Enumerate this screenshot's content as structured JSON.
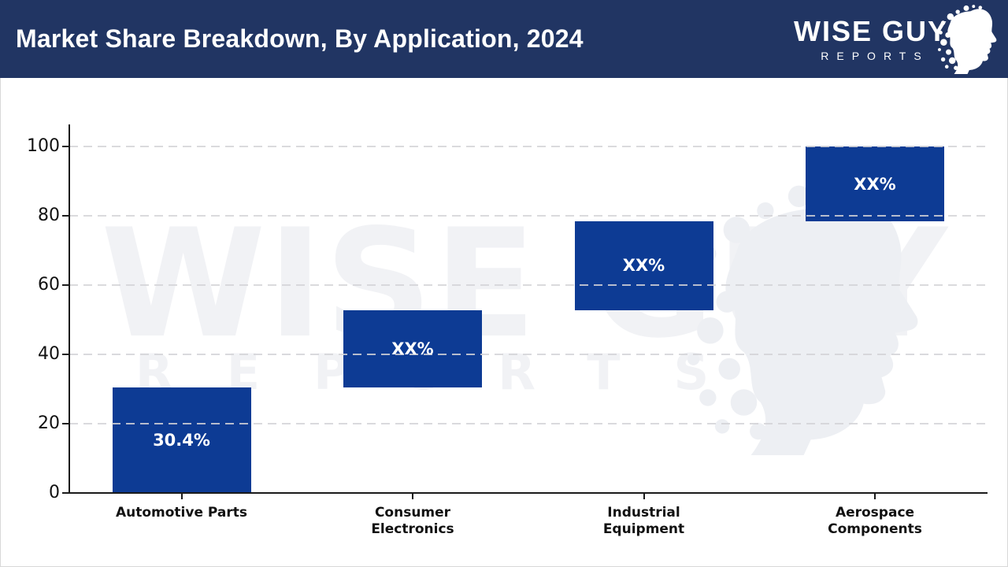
{
  "header": {
    "title": "Market Share Breakdown, By Application, 2024",
    "logo_line1": "WISE GUY",
    "logo_line2": "REPORTS",
    "bg_color": "#213563"
  },
  "watermark": {
    "line1": "WISE GUY",
    "line2": "REPORTS"
  },
  "chart_data": {
    "type": "bar",
    "subtype": "floating-waterfall",
    "title": "Market Share Breakdown, By Application, 2024",
    "categories": [
      "Automotive Parts",
      "Consumer\nElectronics",
      "Industrial\nEquipment",
      "Aerospace\nComponents"
    ],
    "segments": [
      {
        "category": "Automotive Parts",
        "start": 0,
        "end": 30.4,
        "label": "30.4%"
      },
      {
        "category": "Consumer Electronics",
        "start": 30.4,
        "end": 52.8,
        "label": "XX%"
      },
      {
        "category": "Industrial Equipment",
        "start": 52.8,
        "end": 78.4,
        "label": "XX%"
      },
      {
        "category": "Aerospace Components",
        "start": 78.4,
        "end": 100,
        "label": "XX%"
      }
    ],
    "y_ticks": [
      0,
      20,
      40,
      60,
      80,
      100
    ],
    "ylim": [
      0,
      105
    ],
    "xlabel": "",
    "ylabel": "",
    "grid": "dashed-horizontal",
    "legend": "none",
    "bar_color": "#0d3b94",
    "value_label_color": "#ffffff",
    "axis_color": "#1a1a1a"
  }
}
